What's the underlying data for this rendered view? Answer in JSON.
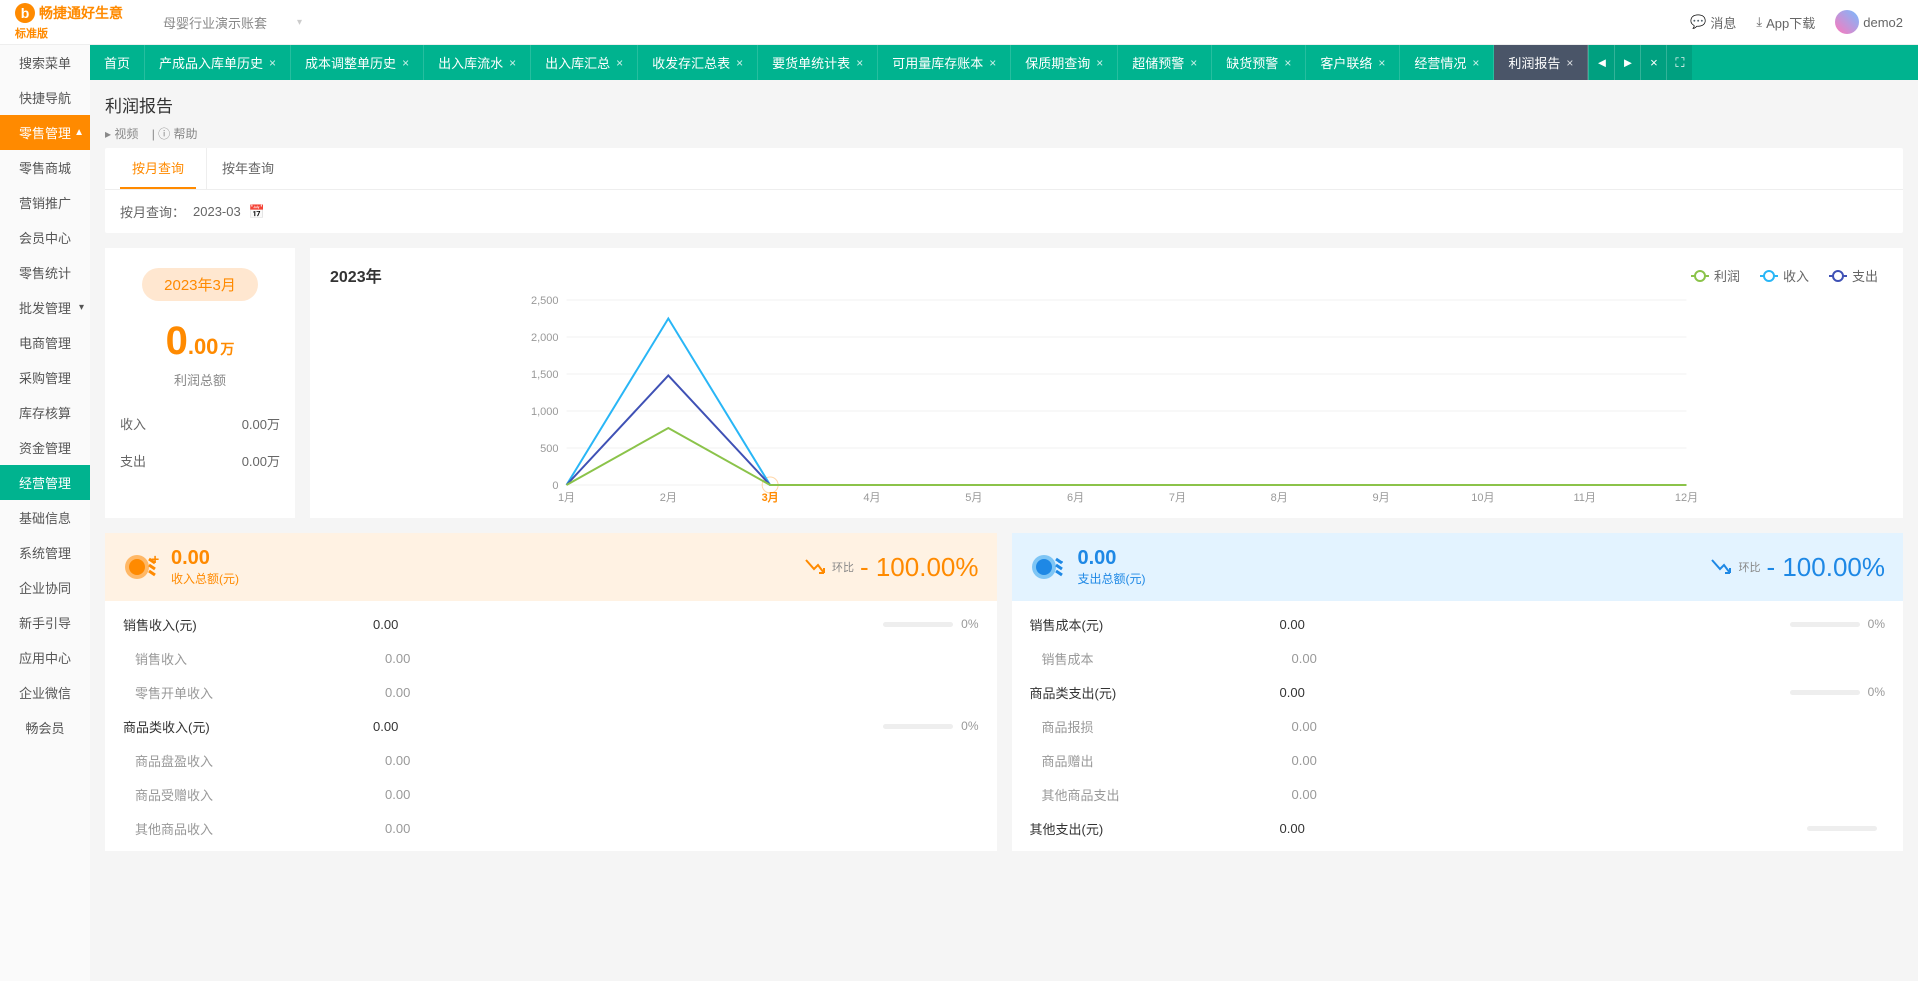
{
  "brand": {
    "name": "畅捷通好生意",
    "sub": "标准版"
  },
  "accountSelector": "母婴行业演示账套",
  "topRight": {
    "msg": "消息",
    "app": "App下载",
    "user": "demo2"
  },
  "sidebar": [
    {
      "label": "搜索菜单",
      "type": "plain"
    },
    {
      "label": "快捷导航",
      "type": "plain"
    },
    {
      "label": "零售管理",
      "type": "active",
      "arrow": "▲"
    },
    {
      "label": "零售商城",
      "type": "sub"
    },
    {
      "label": "营销推广",
      "type": "sub"
    },
    {
      "label": "会员中心",
      "type": "sub"
    },
    {
      "label": "零售统计",
      "type": "sub"
    },
    {
      "label": "批发管理",
      "type": "plain",
      "arrow": "▾"
    },
    {
      "label": "电商管理",
      "type": "plain"
    },
    {
      "label": "采购管理",
      "type": "plain"
    },
    {
      "label": "库存核算",
      "type": "plain"
    },
    {
      "label": "资金管理",
      "type": "plain"
    },
    {
      "label": "经营管理",
      "type": "current"
    },
    {
      "label": "基础信息",
      "type": "plain"
    },
    {
      "label": "系统管理",
      "type": "plain"
    },
    {
      "label": "企业协同",
      "type": "plain"
    },
    {
      "label": "新手引导",
      "type": "plain"
    },
    {
      "label": "应用中心",
      "type": "plain"
    },
    {
      "label": "企业微信",
      "type": "plain"
    },
    {
      "label": "畅会员",
      "type": "plain"
    }
  ],
  "tabs": [
    {
      "label": "首页",
      "closable": false
    },
    {
      "label": "产成品入库单历史",
      "closable": true
    },
    {
      "label": "成本调整单历史",
      "closable": true
    },
    {
      "label": "出入库流水",
      "closable": true
    },
    {
      "label": "出入库汇总",
      "closable": true
    },
    {
      "label": "收发存汇总表",
      "closable": true
    },
    {
      "label": "要货单统计表",
      "closable": true
    },
    {
      "label": "可用量库存账本",
      "closable": true
    },
    {
      "label": "保质期查询",
      "closable": true
    },
    {
      "label": "超储预警",
      "closable": true
    },
    {
      "label": "缺货预警",
      "closable": true
    },
    {
      "label": "客户联络",
      "closable": true
    },
    {
      "label": "经营情况",
      "closable": true
    },
    {
      "label": "利润报告",
      "closable": true,
      "active": true
    }
  ],
  "page": {
    "title": "利润报告",
    "help": {
      "video": "视频",
      "help": "帮助"
    },
    "queryTabs": {
      "byMonth": "按月查询",
      "byYear": "按年查询"
    },
    "queryLabel": "按月查询：",
    "queryValue": "2023-03"
  },
  "summary": {
    "pill": "2023年3月",
    "bigInt": "0",
    "bigDec": ".00",
    "unit": "万",
    "label": "利润总额",
    "income": {
      "k": "收入",
      "v": "0.00万"
    },
    "expense": {
      "k": "支出",
      "v": "0.00万"
    }
  },
  "chart": {
    "title": "2023年",
    "legend": {
      "profit": "利润",
      "income": "收入",
      "expense": "支出"
    },
    "colors": {
      "profit": "#8bc34a",
      "income": "#29b6f6",
      "expense": "#3f51b5"
    },
    "yTicks": [
      "2,500",
      "2,000",
      "1,500",
      "1,000",
      "500",
      "0"
    ],
    "yMax": 2500,
    "xLabels": [
      "1月",
      "2月",
      "3月",
      "4月",
      "5月",
      "6月",
      "7月",
      "8月",
      "9月",
      "10月",
      "11月",
      "12月"
    ],
    "highlightX": 2,
    "series": {
      "income": [
        0,
        2250,
        0,
        0,
        0,
        0,
        0,
        0,
        0,
        0,
        0,
        0
      ],
      "expense": [
        0,
        1480,
        0,
        0,
        0,
        0,
        0,
        0,
        0,
        0,
        0,
        0
      ],
      "profit": [
        0,
        770,
        0,
        0,
        0,
        0,
        0,
        0,
        0,
        0,
        0,
        0
      ]
    },
    "gridColor": "#f1f1f1",
    "axisColor": "#d7d7d7",
    "bg": "#ffffff",
    "highlightColor": "#ff8a00"
  },
  "cards": {
    "income": {
      "title": "收入总额(元)",
      "value": "0.00",
      "pct": "- 100.00%",
      "hb": "环比",
      "rows": [
        {
          "name": "销售收入(元)",
          "val": "0.00",
          "pct": "0%",
          "main": true
        },
        {
          "name": "销售收入",
          "val": "0.00",
          "main": false
        },
        {
          "name": "零售开单收入",
          "val": "0.00",
          "main": false
        },
        {
          "name": "商品类收入(元)",
          "val": "0.00",
          "pct": "0%",
          "main": true
        },
        {
          "name": "商品盘盈收入",
          "val": "0.00",
          "main": false
        },
        {
          "name": "商品受赠收入",
          "val": "0.00",
          "main": false
        },
        {
          "name": "其他商品收入",
          "val": "0.00",
          "main": false
        }
      ]
    },
    "expense": {
      "title": "支出总额(元)",
      "value": "0.00",
      "pct": "- 100.00%",
      "hb": "环比",
      "rows": [
        {
          "name": "销售成本(元)",
          "val": "0.00",
          "pct": "0%",
          "main": true
        },
        {
          "name": "销售成本",
          "val": "0.00",
          "main": false
        },
        {
          "name": "商品类支出(元)",
          "val": "0.00",
          "pct": "0%",
          "main": true
        },
        {
          "name": "商品报损",
          "val": "0.00",
          "main": false
        },
        {
          "name": "商品赠出",
          "val": "0.00",
          "main": false
        },
        {
          "name": "其他商品支出",
          "val": "0.00",
          "main": false
        },
        {
          "name": "其他支出(元)",
          "val": "0.00",
          "pct": "",
          "main": true
        }
      ]
    }
  }
}
